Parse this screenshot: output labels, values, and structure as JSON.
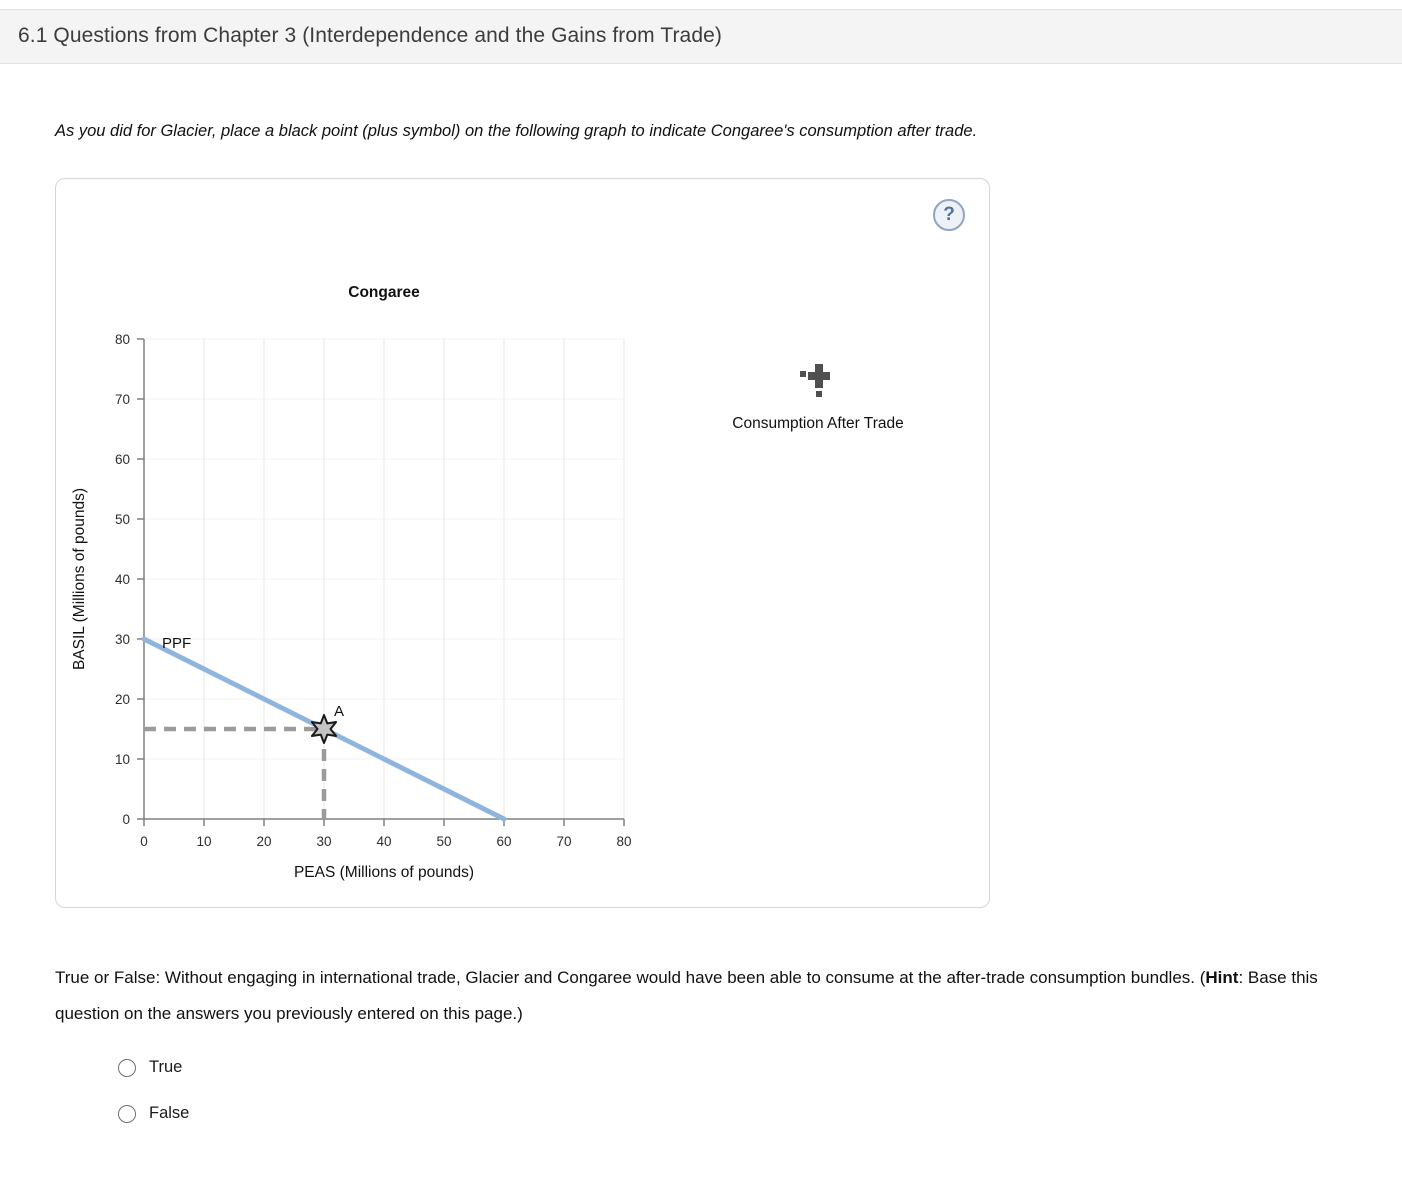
{
  "header": {
    "title": "6.1 Questions from Chapter 3 (Interdependence and the Gains from Trade)"
  },
  "instruction": "As you did for Glacier, place a black point (plus symbol) on the following graph to indicate Congaree's consumption after trade.",
  "panel": {
    "help_label": "?",
    "tool_label": "Consumption After Trade"
  },
  "question": {
    "before_hint": "True or False: Without engaging in international trade, Glacier and Congaree would have been able to consume at the after-trade consumption bundles. (",
    "hint_word": "Hint",
    "after_hint": ": Base this question on the answers you previously entered on this page.)",
    "options": [
      "True",
      "False"
    ]
  },
  "chart_data": {
    "type": "line",
    "title": "Congaree",
    "xlabel": "PEAS (Millions of pounds)",
    "ylabel": "BASIL (Millions of pounds)",
    "xlim": [
      0,
      80
    ],
    "ylim": [
      0,
      80
    ],
    "xticks": [
      0,
      10,
      20,
      30,
      40,
      50,
      60,
      70,
      80
    ],
    "yticks": [
      0,
      10,
      20,
      30,
      40,
      50,
      60,
      70,
      80
    ],
    "grid": true,
    "legend_position": "none",
    "series": [
      {
        "name": "PPF",
        "type": "line",
        "color": "#8fb5dd",
        "points": [
          [
            0,
            30
          ],
          [
            60,
            0
          ]
        ],
        "label_pos": [
          3,
          28.5
        ]
      }
    ],
    "point_a": {
      "label": "A",
      "x": 30,
      "y": 15,
      "marker": "star"
    },
    "dashed_guides": [
      {
        "from": [
          0,
          15
        ],
        "to": [
          30,
          15
        ]
      },
      {
        "from": [
          30,
          15
        ],
        "to": [
          30,
          0
        ]
      }
    ],
    "colors": {
      "ppf": "#8fb5dd",
      "dashed": "#9b9b9b",
      "grid_v": "#e7e7e7",
      "grid_h": "#f3f3f3",
      "axis": "#808080",
      "star_fill": "#c4c4c4",
      "star_stroke": "#1a1a1a"
    }
  }
}
